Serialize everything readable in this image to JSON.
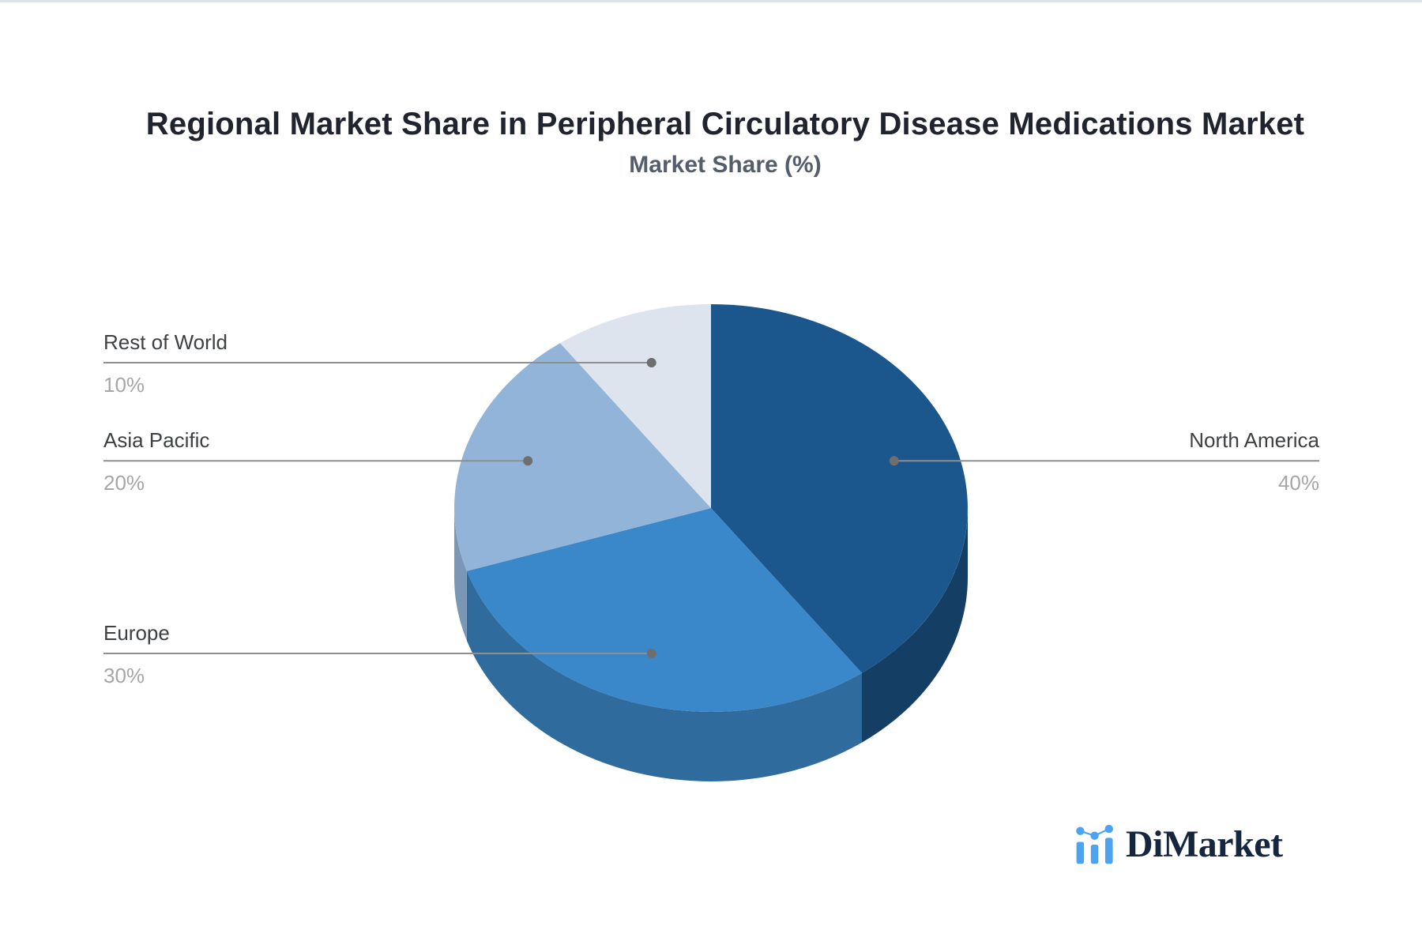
{
  "chart_data": {
    "type": "pie",
    "style": "3d",
    "title": "Regional Market Share in Peripheral Circulatory Disease Medications Market",
    "subtitle": "Market Share (%)",
    "unit": "%",
    "start_angle_deg": 0,
    "direction": "clockwise",
    "legend_position": "callout-labels",
    "series": [
      {
        "name": "North America",
        "value": 40,
        "label": "40%",
        "color": "#1b578d",
        "side_color": "#143e63"
      },
      {
        "name": "Europe",
        "value": 30,
        "label": "30%",
        "color": "#3a87ca",
        "side_color": "#2f6b9d"
      },
      {
        "name": "Asia Pacific",
        "value": 20,
        "label": "20%",
        "color": "#92b4d8",
        "side_color": "#7b97b6"
      },
      {
        "name": "Rest of World",
        "value": 10,
        "label": "10%",
        "color": "#dde4ee",
        "side_color": "#c2cddc"
      }
    ]
  },
  "branding": {
    "logo_text": "DiMarket",
    "logo_icon": "bar-chart-icon",
    "logo_icon_color": "#4da2f2",
    "logo_text_color": "#16263f"
  },
  "colors": {
    "background": "#ffffff",
    "title": "#20242e",
    "subtitle": "#545e6b",
    "label_name": "#3d4144",
    "label_value": "#a6a6a6",
    "leader_line": "#8f8f8f",
    "leader_dot": "#6e6e6e"
  }
}
